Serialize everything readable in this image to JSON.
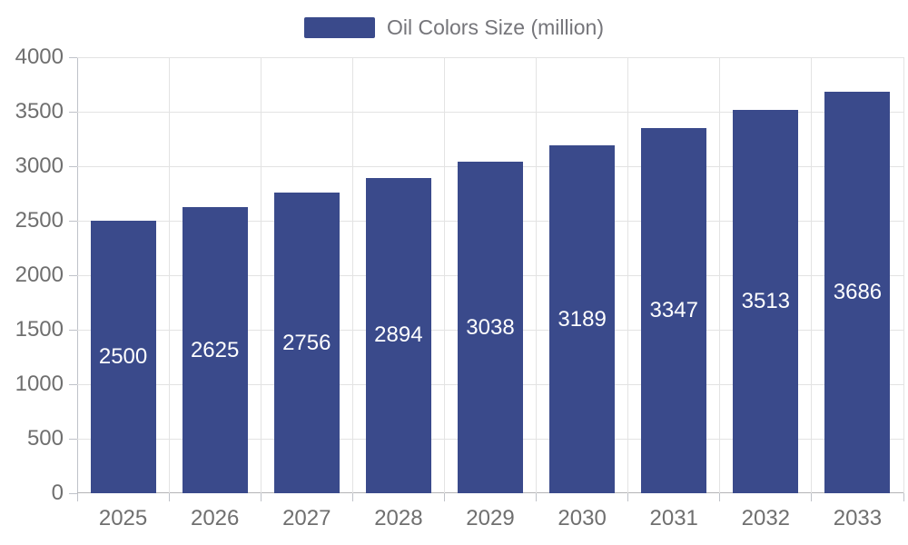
{
  "legend": {
    "items": [
      {
        "label": "Oil Colors Size (million)",
        "color": "#3a4a8b"
      }
    ]
  },
  "chart_data": {
    "type": "bar",
    "title": "",
    "categories": [
      "2025",
      "2026",
      "2027",
      "2028",
      "2029",
      "2030",
      "2031",
      "2032",
      "2033"
    ],
    "series": [
      {
        "name": "Oil Colors Size (million)",
        "values": [
          2500,
          2625,
          2756,
          2894,
          3038,
          3189,
          3347,
          3513,
          3686
        ],
        "color": "#3a4a8b"
      }
    ],
    "xlabel": "",
    "ylabel": "",
    "ylim": [
      0,
      4000
    ],
    "yticks": [
      0,
      500,
      1000,
      1500,
      2000,
      2500,
      3000,
      3500,
      4000
    ],
    "bar_labels_visible": true,
    "bar_label_position": "inside-center",
    "grid": true,
    "legend_position": "top",
    "colors": {
      "bar": "#3a4a8b",
      "bar_label": "#ffffff",
      "grid_line": "#e3e3e3",
      "axis_line": "#b3b3b6",
      "tick_line": "#bfc2c9",
      "axis_text": "#6f6f6f",
      "legend_text": "#75757a",
      "background": "#ffffff"
    }
  }
}
